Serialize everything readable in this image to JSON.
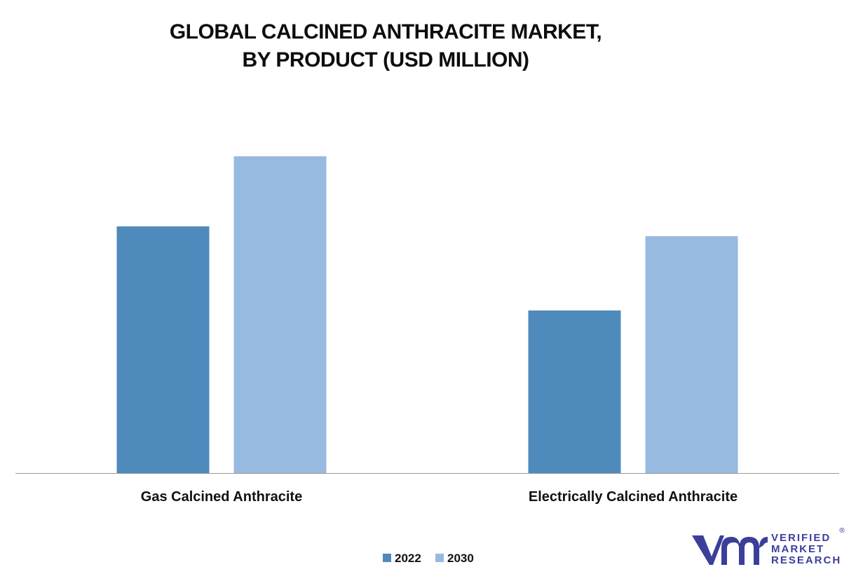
{
  "title_lines": [
    "GLOBAL CALCINED ANTHRACITE MARKET,",
    "BY PRODUCT (USD MILLION)"
  ],
  "colors": {
    "series_2022": "#4f8abd",
    "series_2030": "#98b9e0",
    "axis": "#9a9a9a",
    "logo": "#3b3f9a"
  },
  "chart_data": {
    "type": "bar",
    "title": "GLOBAL CALCINED ANTHRACITE MARKET, BY PRODUCT (USD MILLION)",
    "categories": [
      "Gas Calcined Anthracite",
      "Electrically Calcined Anthracite"
    ],
    "series": [
      {
        "name": "2022",
        "values": [
          352,
          232
        ]
      },
      {
        "name": "2030",
        "values": [
          452,
          338
        ]
      }
    ],
    "ylim": [
      0,
      500
    ],
    "grid": false,
    "legend": "bottom-center",
    "xlabel": "",
    "ylabel": ""
  },
  "logo": {
    "mark": "vmr-logo-icon",
    "lines": [
      "VERIFIED",
      "MARKET",
      "RESEARCH"
    ],
    "registered": "®"
  }
}
